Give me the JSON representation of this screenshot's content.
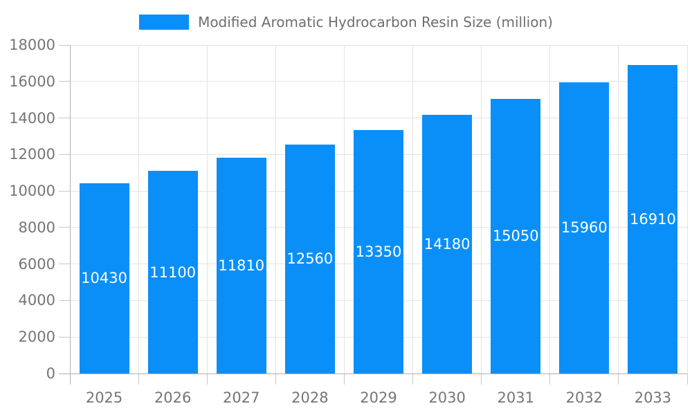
{
  "legend": {
    "label": "Modified Aromatic Hydrocarbon Resin Size (million)"
  },
  "chart_data": {
    "type": "bar",
    "title": "Modified Aromatic Hydrocarbon Resin Size (million)",
    "categories": [
      "2025",
      "2026",
      "2027",
      "2028",
      "2029",
      "2030",
      "2031",
      "2032",
      "2033"
    ],
    "values": [
      10430,
      11100,
      11810,
      12560,
      13350,
      14180,
      15050,
      15960,
      16910
    ],
    "value_labels": [
      "10430",
      "11100",
      "11810",
      "12560",
      "13350",
      "14180",
      "15050",
      "15960",
      "16910"
    ],
    "xlabel": "",
    "ylabel": "",
    "ylim": [
      0,
      18000
    ],
    "ytick_step": 2000,
    "y_tick_labels": [
      "0",
      "2000",
      "4000",
      "6000",
      "8000",
      "10000",
      "12000",
      "14000",
      "16000",
      "18000"
    ],
    "grid": true,
    "legend_position": "top-center",
    "value_label_position": "inside-middle",
    "colors": {
      "bar": "#0a8ff8",
      "grid": "#e3e3e3",
      "axis_line": "#b0b0b0",
      "tick": "#c8c8c8",
      "axis_text": "#757575",
      "legend_text": "#6e6e6e",
      "value_text": "#ffffff",
      "background": "#ffffff"
    }
  }
}
